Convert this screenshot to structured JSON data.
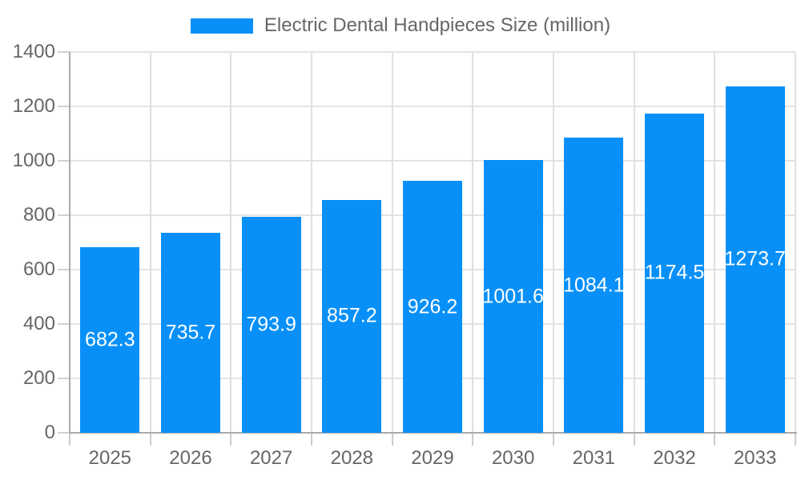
{
  "chart_data": {
    "type": "bar",
    "title": "Electric Dental Handpieces Size (million)",
    "legend": [
      "Electric Dental Handpieces Size (million)"
    ],
    "legend_position": "top-center",
    "categories": [
      "2025",
      "2026",
      "2027",
      "2028",
      "2029",
      "2030",
      "2031",
      "2032",
      "2033"
    ],
    "values": [
      682.3,
      735.7,
      793.9,
      857.2,
      926.2,
      1001.6,
      1084.1,
      1174.5,
      1273.7
    ],
    "data_labels": [
      "682.3",
      "735.7",
      "793.9",
      "857.2",
      "926.2",
      "1001.6",
      "1084.1",
      "1174.5",
      "1273.7"
    ],
    "xlabel": "",
    "ylabel": "",
    "ylim": [
      0,
      1400
    ],
    "yticks": [
      0,
      200,
      400,
      600,
      800,
      1000,
      1200,
      1400
    ],
    "grid": true
  },
  "colors": {
    "bar": "#0890F8",
    "bar_label_text": "#ffffff",
    "axis_text": "#666666",
    "legend_text": "#666666",
    "gridline": "#e4e4e4",
    "axis_line": "#aaaaaa",
    "background": "#ffffff"
  }
}
